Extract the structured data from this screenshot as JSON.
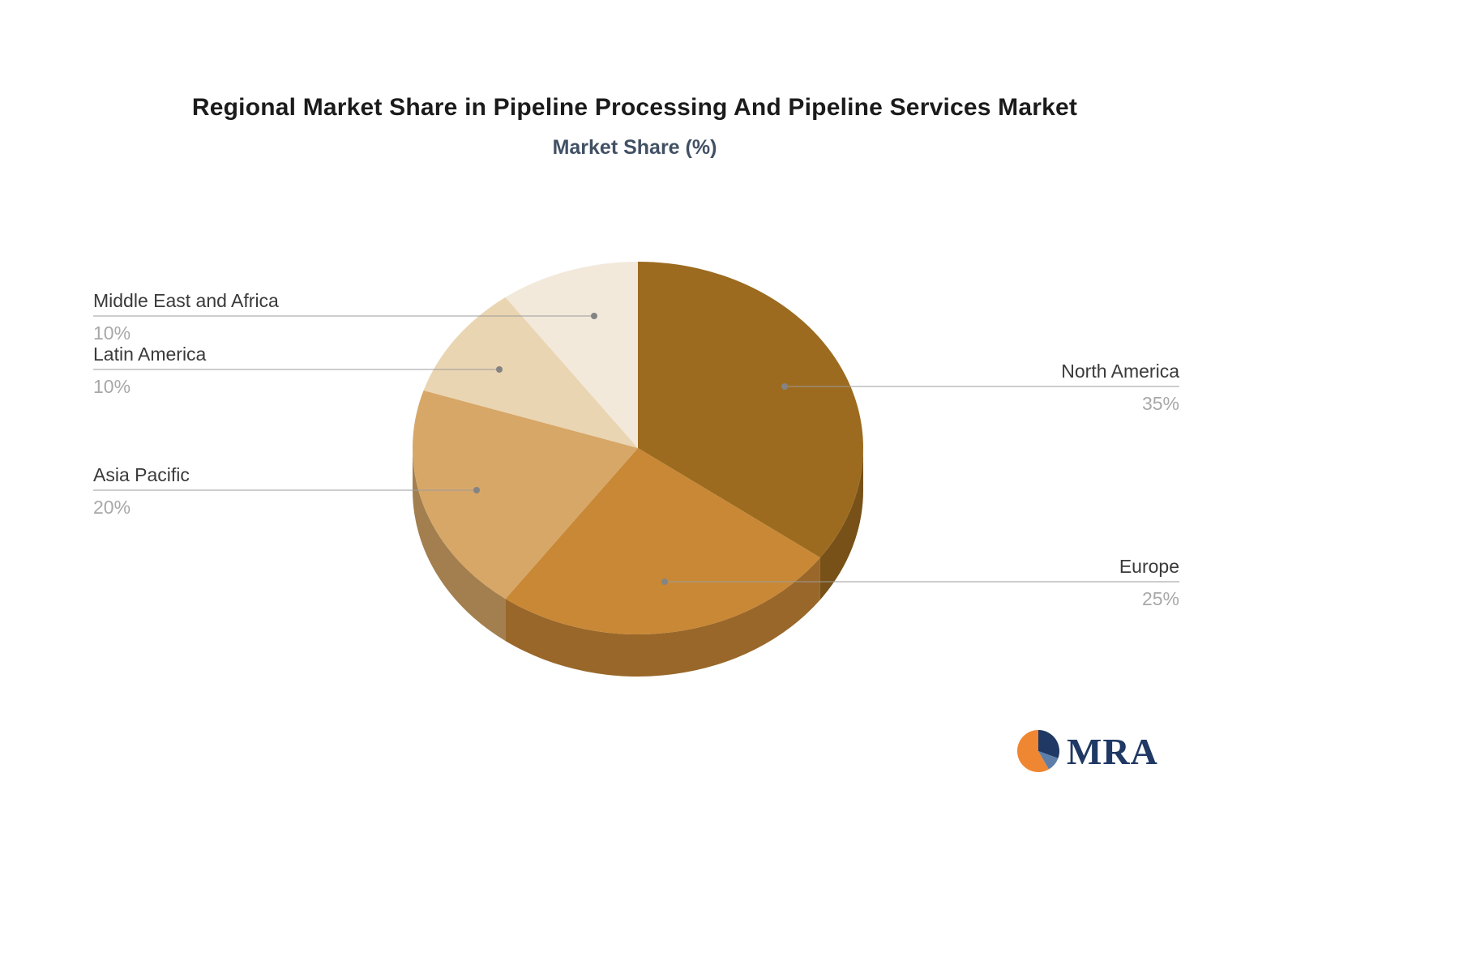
{
  "title": "Regional Market Share in Pipeline Processing And Pipeline Services Market",
  "subtitle": "Market Share (%)",
  "chart_data": {
    "type": "pie",
    "title": "Regional Market Share in Pipeline Processing And Pipeline Services Market",
    "subtitle": "Market Share (%)",
    "unit": "%",
    "categories": [
      "North America",
      "Europe",
      "Asia Pacific",
      "Latin America",
      "Middle East and Africa"
    ],
    "values": [
      35,
      25,
      20,
      10,
      10
    ],
    "labels": [
      "35%",
      "25%",
      "20%",
      "10%",
      "10%"
    ],
    "colors": [
      "#9c6b1f",
      "#c98836",
      "#d7a768",
      "#ead5b2",
      "#f2e9db"
    ],
    "legend_position": "none",
    "label_style": "callout-lines",
    "style": "3d-pie",
    "start_angle_deg": -90,
    "direction": "clockwise"
  },
  "logo": {
    "text": "MRA",
    "icon": "pie-icon",
    "icon_colors": [
      "#ef8632",
      "#1f3864",
      "#5d7ea9"
    ],
    "text_color": "#1f3864"
  }
}
